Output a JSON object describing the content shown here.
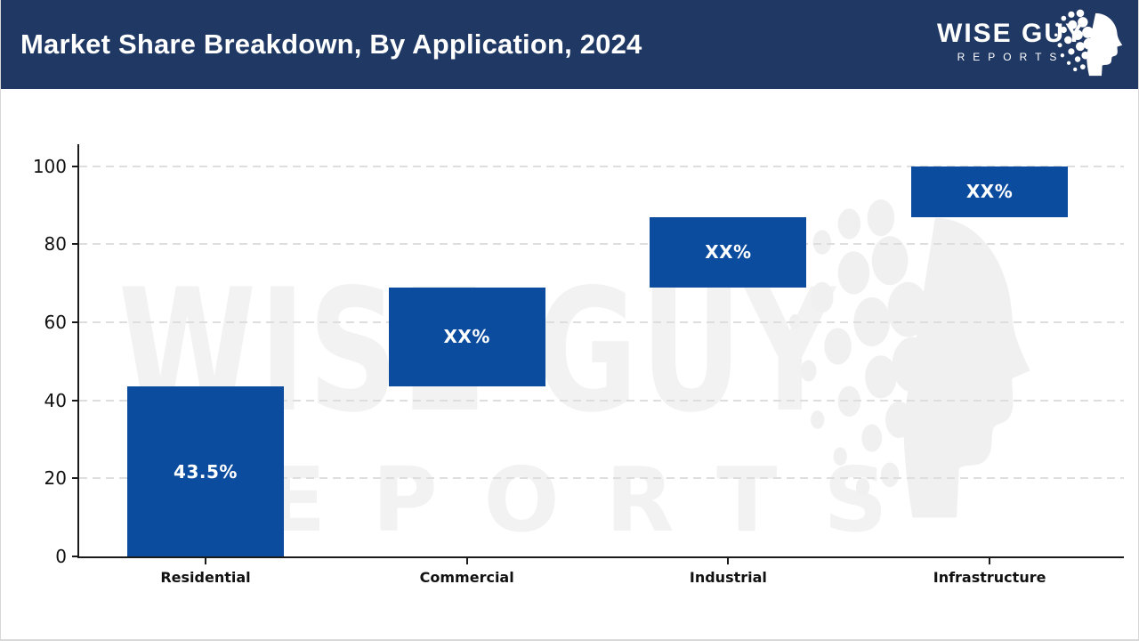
{
  "header": {
    "title": "Market Share Breakdown, By Application, 2024",
    "logo": {
      "line1": "WISE GUY",
      "line2": "REPORTS"
    }
  },
  "watermark": {
    "line1": "WISE GUY",
    "line2": "REPORTS"
  },
  "colors": {
    "header_bg": "#203864",
    "bar": "#0B4C9F",
    "value_label": "#FFFFFF",
    "grid": "#DEDEDE",
    "axis": "#1A1A1A",
    "watermark": "#F2F2F2"
  },
  "chart_data": {
    "type": "bar",
    "variant": "waterfall-breakdown",
    "title": "Market Share Breakdown, By Application, 2024",
    "categories": [
      "Residential",
      "Commercial",
      "Industrial",
      "Infrastructure"
    ],
    "segments": [
      {
        "category": "Residential",
        "start": 0,
        "end": 43.5,
        "value": 43.5,
        "label": "43.5%"
      },
      {
        "category": "Commercial",
        "start": 43.5,
        "end": 69,
        "value": 25.5,
        "label": "XX%"
      },
      {
        "category": "Industrial",
        "start": 69,
        "end": 87,
        "value": 18,
        "label": "XX%"
      },
      {
        "category": "Infrastructure",
        "start": 87,
        "end": 100,
        "value": 13,
        "label": "XX%"
      }
    ],
    "xlabel": "",
    "ylabel": "",
    "yticks": [
      0,
      20,
      40,
      60,
      80,
      100
    ],
    "ylim": [
      0,
      105
    ],
    "grid": "horizontal dashed",
    "legend": "none"
  }
}
